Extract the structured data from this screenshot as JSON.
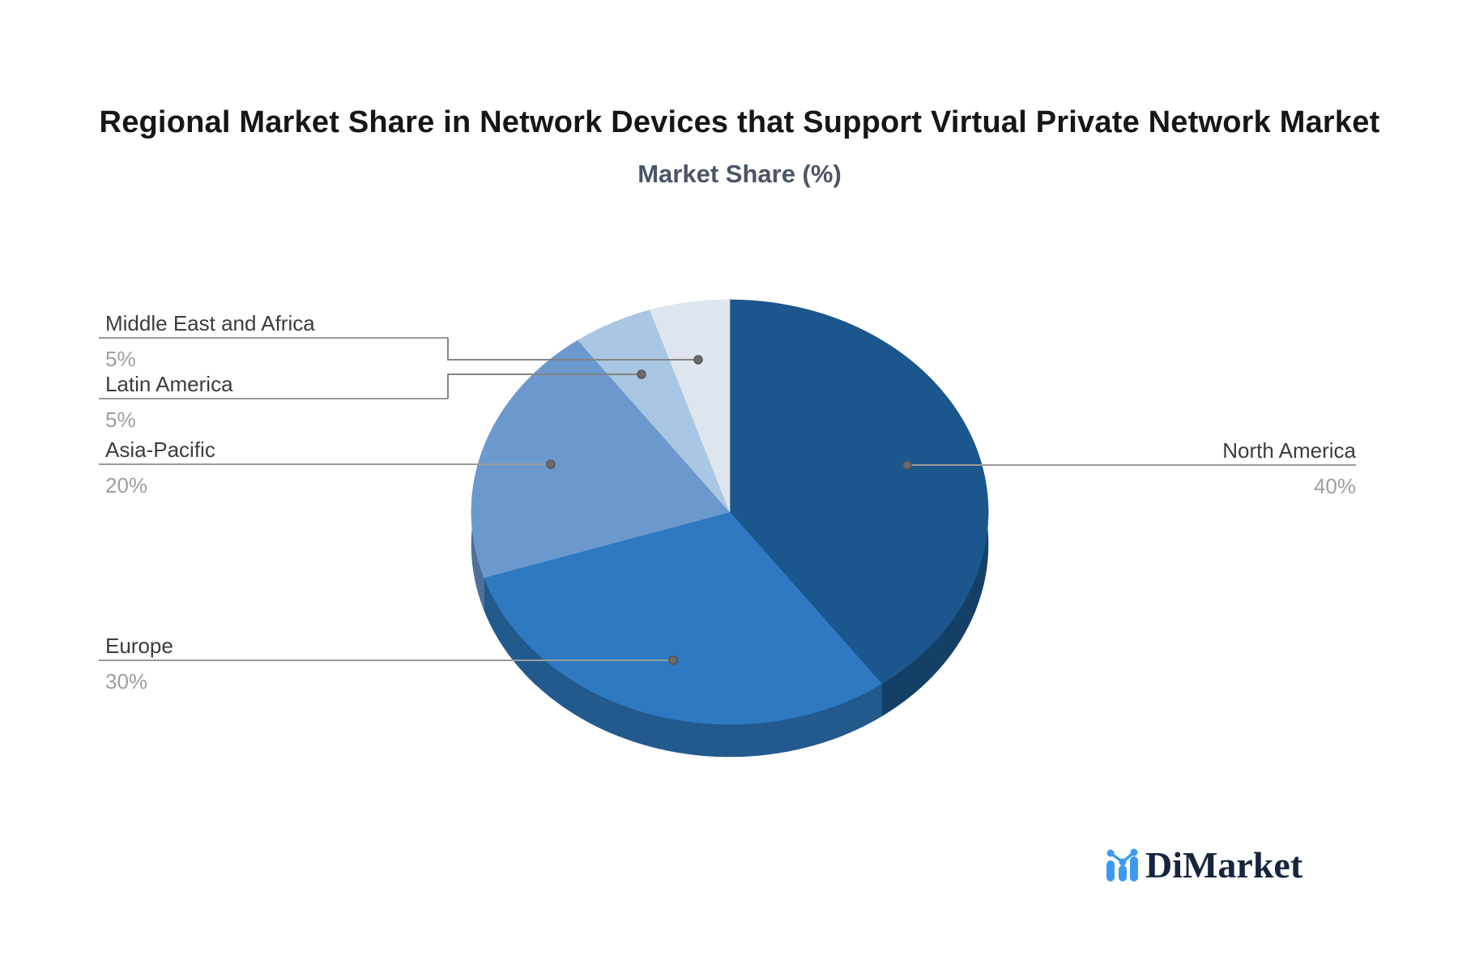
{
  "title": "Regional Market Share in Network Devices that Support Virtual Private Network Market",
  "subtitle": "Market Share (%)",
  "logo": {
    "text": "DiMarket",
    "icon": "mini-bar-line-chart-icon",
    "icon_color": "#3D9AF2",
    "text_color": "#16243D"
  },
  "chart_data": {
    "type": "pie",
    "title": "Regional Market Share in Network Devices that Support Virtual Private Network Market",
    "subtitle": "Market Share (%)",
    "unit": "%",
    "effect": "3d",
    "start_angle": "12-o-clock",
    "direction": "clockwise",
    "slices": [
      {
        "label": "North America",
        "value": 40,
        "display": "40%",
        "color": "#1B568C"
      },
      {
        "label": "Europe",
        "value": 30,
        "display": "30%",
        "color": "#2E79C0"
      },
      {
        "label": "Asia-Pacific",
        "value": 20,
        "display": "20%",
        "color": "#6B99CE"
      },
      {
        "label": "Latin America",
        "value": 5,
        "display": "5%",
        "color": "#A9C6E2"
      },
      {
        "label": "Middle East and Africa",
        "value": 5,
        "display": "5%",
        "color": "#DFE5EE"
      }
    ],
    "style": {
      "label_name_color": "#3C3C3C",
      "label_value_color": "#9E9E9E",
      "leader_line_color": "#848484",
      "rule_color": "#9B9B9B",
      "dot_color": "#6B6B6B"
    }
  }
}
